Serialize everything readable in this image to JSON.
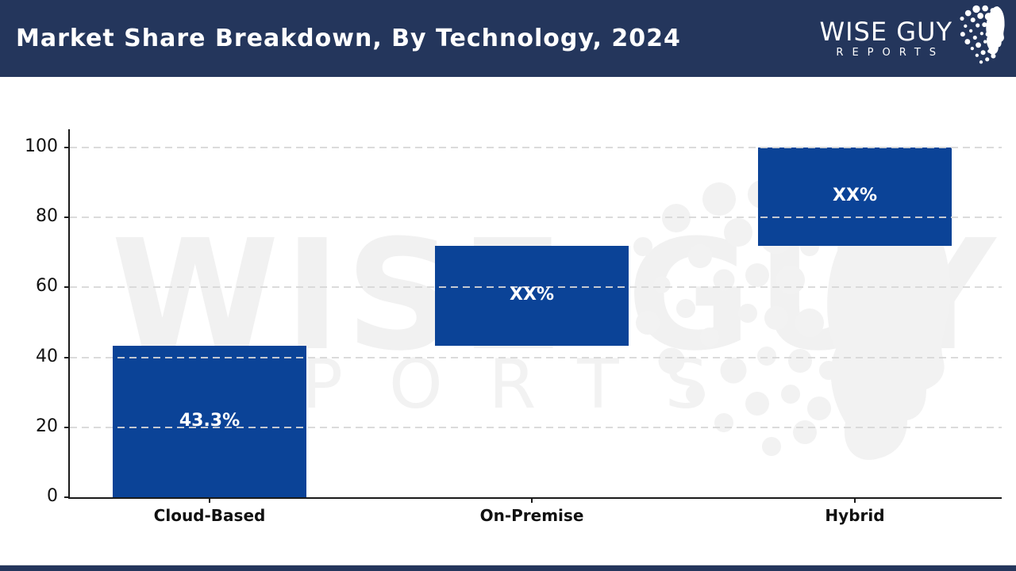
{
  "header": {
    "title": "Market Share Breakdown, By Technology, 2024",
    "bg_color": "#24365c",
    "logo": {
      "line1": "WISE GUY",
      "line2": "REPORTS"
    }
  },
  "watermark": {
    "line1": "WISE GUY",
    "line2": "REPORTS"
  },
  "chart_data": {
    "type": "bar",
    "subtype": "floating_stacked_percentage",
    "title": "Market Share Breakdown, By Technology, 2024",
    "categories": [
      "Cloud-Based",
      "On-Premise",
      "Hybrid"
    ],
    "segments": [
      {
        "category": "Cloud-Based",
        "start": 0,
        "end": 43.3,
        "label": "43.3%"
      },
      {
        "category": "On-Premise",
        "start": 43.3,
        "end": 71.9,
        "label": "XX%"
      },
      {
        "category": "Hybrid",
        "start": 71.9,
        "end": 100,
        "label": "XX%"
      }
    ],
    "xlabel": "",
    "ylabel": "",
    "ylim": [
      0,
      100
    ],
    "yticks": [
      0,
      20,
      40,
      60,
      80,
      100
    ],
    "grid": {
      "axis": "y",
      "style": "dashed",
      "color": "#d9d9d9"
    },
    "legend": "none",
    "bar_color": "#0b4397",
    "bar_label_color": "#ffffff",
    "axis_color": "#1a1a1a"
  },
  "footer": {
    "bar_color": "#24365c"
  }
}
